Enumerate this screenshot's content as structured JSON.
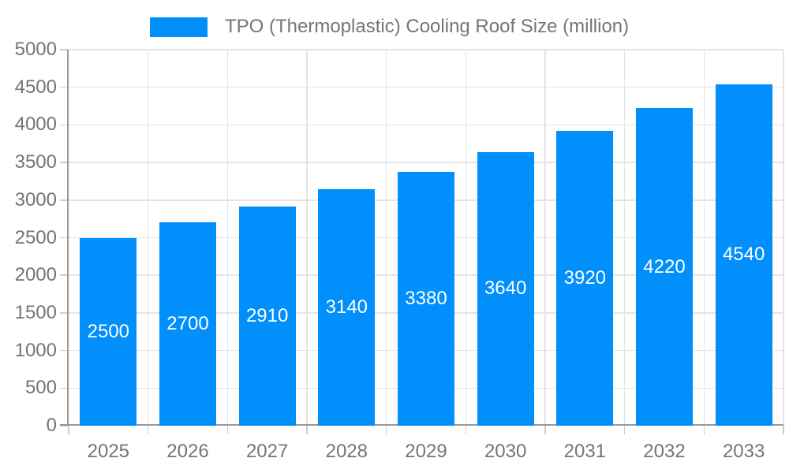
{
  "legend": {
    "label": "TPO (Thermoplastic) Cooling Roof Size (million)",
    "swatch_color": "#008FFB"
  },
  "colors": {
    "bar": "#008FFB",
    "bar_value_label": "#ffffff",
    "grid_line": "#e4e4e4",
    "axis_line": "#999999",
    "tick_mark": "#cccccc",
    "axis_label": "#757575",
    "background": "#ffffff"
  },
  "chart_data": {
    "type": "bar",
    "title": "TPO (Thermoplastic) Cooling Roof Size (million)",
    "categories": [
      "2025",
      "2026",
      "2027",
      "2028",
      "2029",
      "2030",
      "2031",
      "2032",
      "2033"
    ],
    "values": [
      2500,
      2700,
      2910,
      3140,
      3380,
      3640,
      3920,
      4220,
      4540
    ],
    "value_labels": [
      "2500",
      "2700",
      "2910",
      "3140",
      "3380",
      "3640",
      "3920",
      "4220",
      "4540"
    ],
    "xlabel": "",
    "ylabel": "",
    "ylim": [
      0,
      5000
    ],
    "ytick_step": 500,
    "yticks": [
      "5000",
      "4500",
      "4000",
      "3500",
      "3000",
      "2500",
      "2000",
      "1500",
      "1000",
      "500",
      "0"
    ],
    "grid": true,
    "legend_position": "top",
    "bar_value_label_position": "inside-center"
  }
}
